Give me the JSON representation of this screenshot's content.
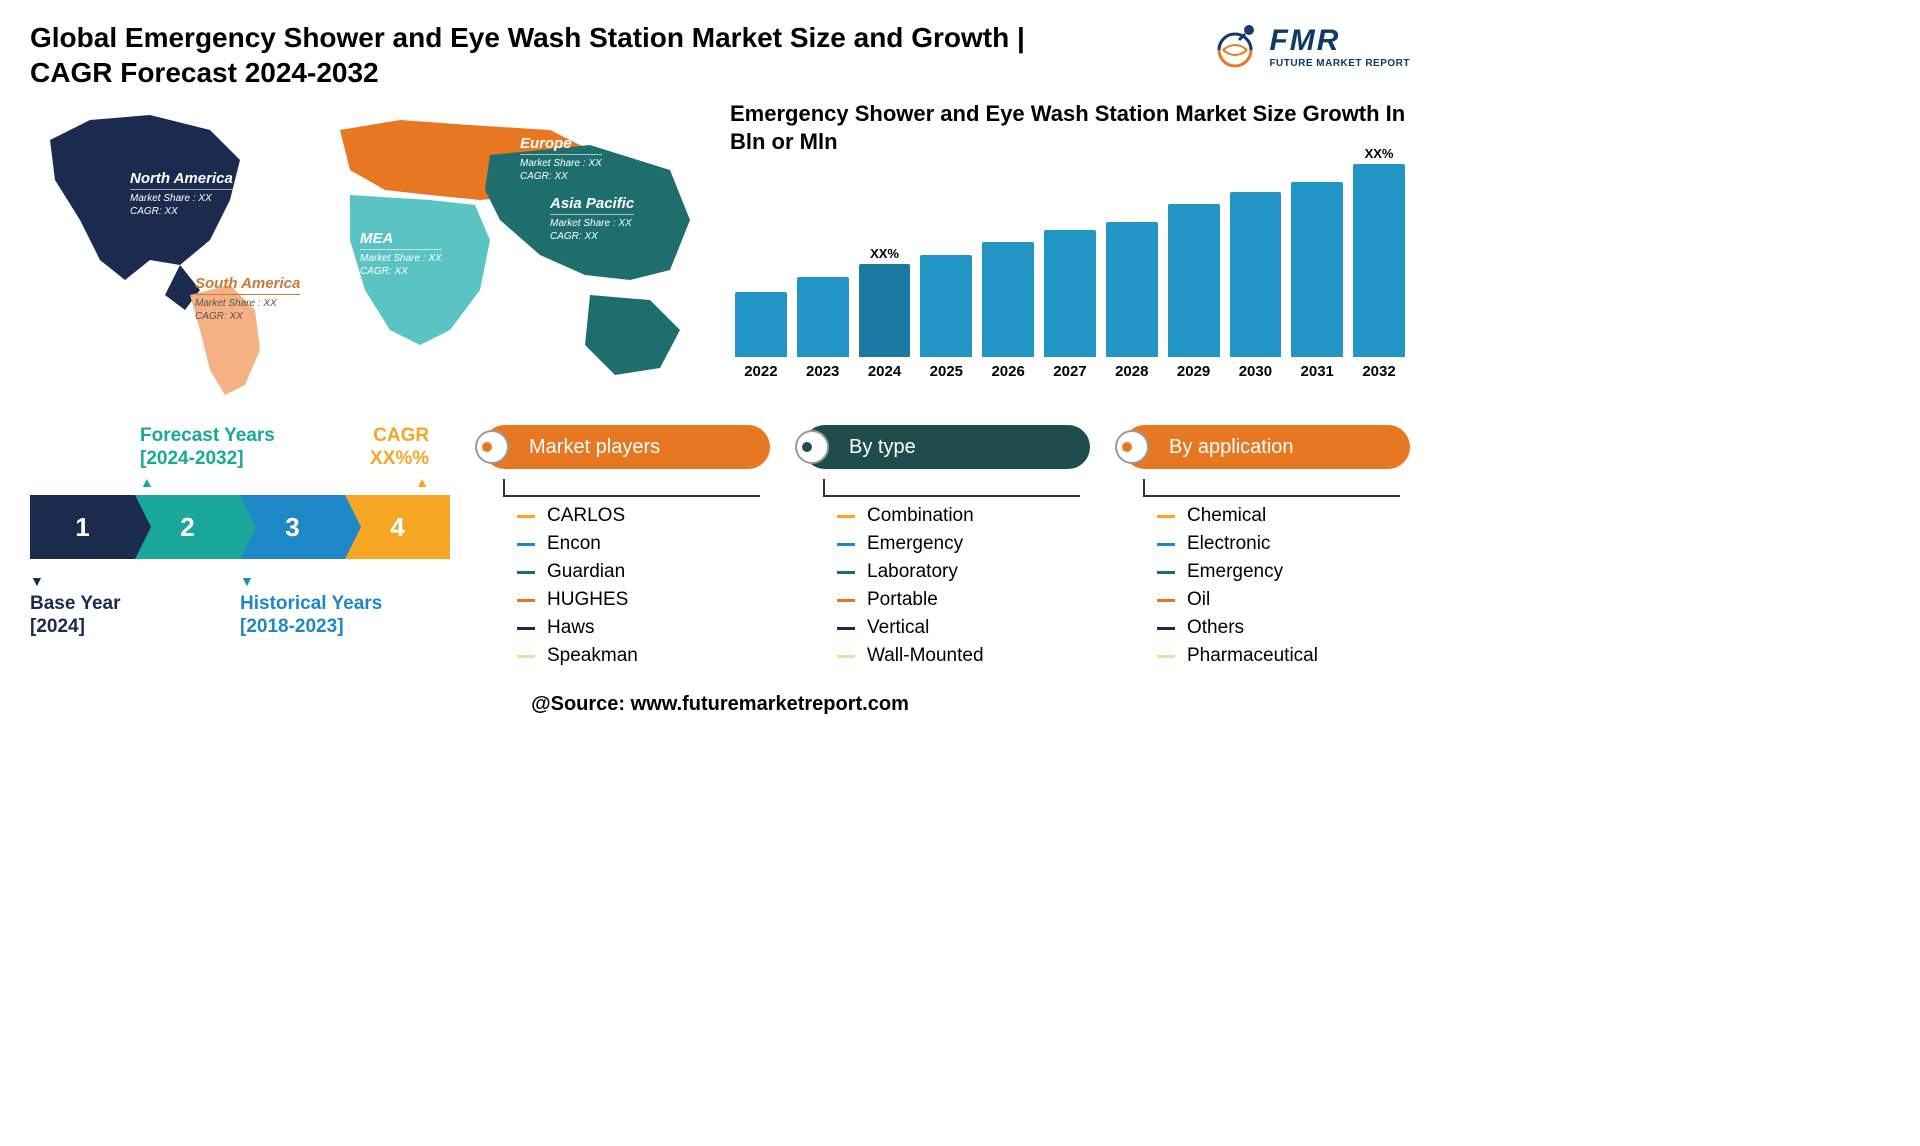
{
  "title": "Global Emergency Shower and Eye Wash Station Market Size and Growth | CAGR Forecast 2024-2032",
  "logo": {
    "fmr": "FMR",
    "sub": "FUTURE MARKET REPORT",
    "icon_color": "#e87722",
    "text_color": "#18396d"
  },
  "map": {
    "regions": [
      {
        "key": "na",
        "name": "North America",
        "share": "Market Share : XX",
        "cagr": "CAGR: XX",
        "color": "#1b2b4d"
      },
      {
        "key": "sa",
        "name": "South America",
        "share": "Market Share : XX",
        "cagr": "CAGR: XX",
        "color": "#f4b183"
      },
      {
        "key": "eu",
        "name": "Europe",
        "share": "Market Share : XX",
        "cagr": "CAGR: XX",
        "color": "#e87722"
      },
      {
        "key": "mea",
        "name": "MEA",
        "share": "Market Share : XX",
        "cagr": "CAGR: XX",
        "color": "#5ac4c4"
      },
      {
        "key": "ap",
        "name": "Asia Pacific",
        "share": "Market Share : XX",
        "cagr": "CAGR: XX",
        "color": "#1f6e6e"
      }
    ]
  },
  "chart": {
    "title": "Emergency Shower and Eye Wash Station Market Size Growth In Bln or Mln",
    "bar_color_normal": "#2196c4",
    "bar_color_highlight": "#1b7aa3",
    "years": [
      "2022",
      "2023",
      "2024",
      "2025",
      "2026",
      "2027",
      "2028",
      "2029",
      "2030",
      "2031",
      "2032"
    ],
    "values": [
      72,
      88,
      102,
      112,
      126,
      140,
      148,
      168,
      182,
      192,
      212
    ],
    "highlight_indices": [
      2
    ],
    "annotations": [
      {
        "index": 2,
        "text": "XX%"
      },
      {
        "index": 10,
        "text": "XX%"
      }
    ],
    "ymax": 220,
    "label_fontsize": 15,
    "label_fontweight": 700
  },
  "timeline": {
    "segments": [
      {
        "num": "1",
        "color": "#1b2b4d"
      },
      {
        "num": "2",
        "color": "#19a89b"
      },
      {
        "num": "3",
        "color": "#1e88c7"
      },
      {
        "num": "4",
        "color": "#f5a623"
      }
    ],
    "labels": {
      "base": {
        "line1": "Base Year",
        "line2": "[2024]",
        "color": "#1b2b4d"
      },
      "forecast": {
        "line1": "Forecast Years",
        "line2": "[2024-2032]",
        "color": "#19a89b"
      },
      "hist": {
        "line1": "Historical Years",
        "line2": "[2018-2023]",
        "color": "#1e88c7"
      },
      "cagr": {
        "line1": "CAGR",
        "line2": "XX%%",
        "color": "#f5a623"
      }
    }
  },
  "categories": [
    {
      "title": "Market players",
      "pill_color": "#e87722",
      "dot_color": "#e87722",
      "items": [
        {
          "label": "CARLOS",
          "tick": "#f5a623"
        },
        {
          "label": "Encon",
          "tick": "#1e88c7"
        },
        {
          "label": "Guardian",
          "tick": "#1f6e6e"
        },
        {
          "label": "HUGHES",
          "tick": "#e87722"
        },
        {
          "label": "Haws",
          "tick": "#1b2b4d"
        },
        {
          "label": "Speakman",
          "tick": "#f4d9a8"
        }
      ]
    },
    {
      "title": "By type",
      "pill_color": "#1f4d4d",
      "dot_color": "#1f4d4d",
      "items": [
        {
          "label": "Combination",
          "tick": "#f5a623"
        },
        {
          "label": "Emergency",
          "tick": "#1e88c7"
        },
        {
          "label": "Laboratory",
          "tick": "#1f6e6e"
        },
        {
          "label": "Portable",
          "tick": "#e87722"
        },
        {
          "label": "Vertical",
          "tick": "#1b2b4d"
        },
        {
          "label": "Wall-Mounted",
          "tick": "#f4d9a8"
        }
      ]
    },
    {
      "title": "By application",
      "pill_color": "#e87722",
      "dot_color": "#e87722",
      "items": [
        {
          "label": "Chemical",
          "tick": "#f5a623"
        },
        {
          "label": "Electronic",
          "tick": "#1e88c7"
        },
        {
          "label": "Emergency",
          "tick": "#1f6e6e"
        },
        {
          "label": "Oil",
          "tick": "#e87722"
        },
        {
          "label": "Others",
          "tick": "#1b2b4d"
        },
        {
          "label": "Pharmaceutical",
          "tick": "#f4d9a8"
        }
      ]
    }
  ],
  "source": "@Source: www.futuremarketreport.com"
}
